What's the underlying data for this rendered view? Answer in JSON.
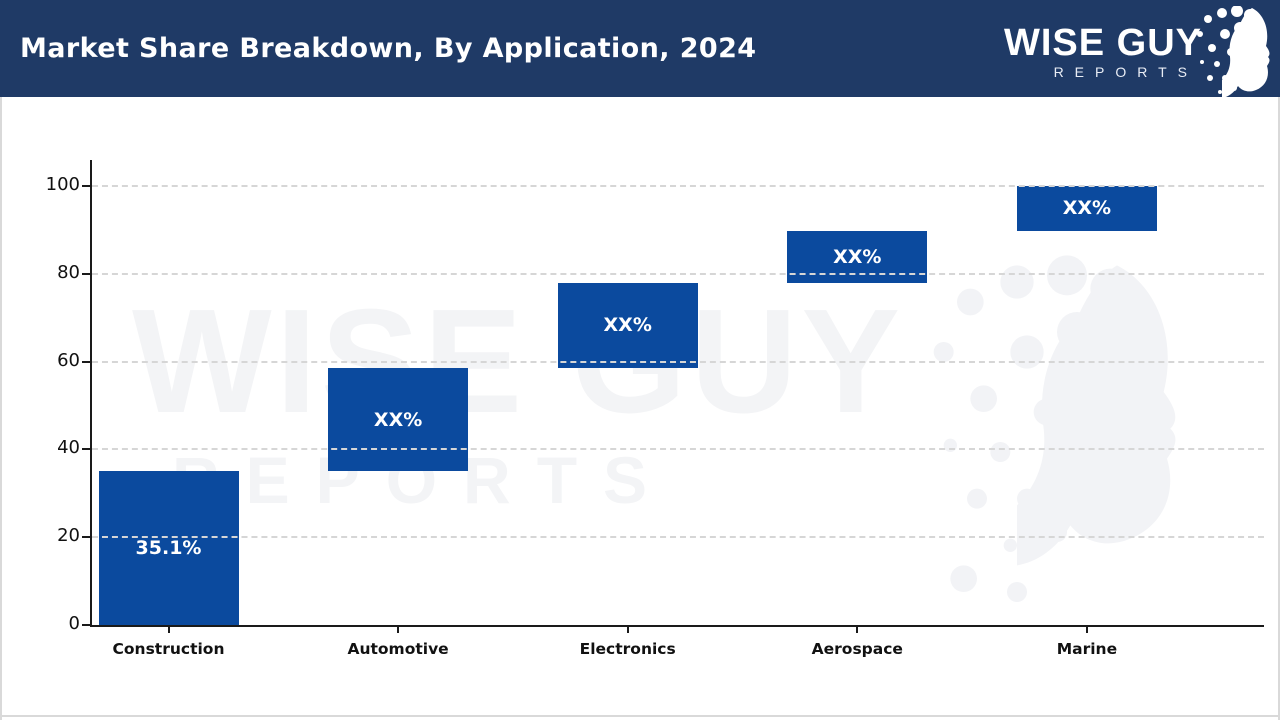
{
  "header": {
    "title": "Market Share Breakdown, By Application, 2024",
    "bg_color": "#1f3a66",
    "logo": {
      "line1": "WISE GUY",
      "line2": "REPORTS",
      "icon": "wiseguy-face-icon"
    }
  },
  "watermark": {
    "line1": "WISE GUY",
    "line2": "REPORTS"
  },
  "chart_data": {
    "type": "bar",
    "subtype": "waterfall",
    "title": "Market Share Breakdown, By Application, 2024",
    "categories": [
      "Construction",
      "Automotive",
      "Electronics",
      "Aerospace",
      "Marine"
    ],
    "segments": [
      {
        "category": "Construction",
        "start": 0,
        "end": 35.1,
        "value": 35.1,
        "label": "35.1%"
      },
      {
        "category": "Automotive",
        "start": 35.1,
        "end": 58.5,
        "value": 23.4,
        "label": "XX%"
      },
      {
        "category": "Electronics",
        "start": 58.5,
        "end": 78.0,
        "value": 19.5,
        "label": "XX%"
      },
      {
        "category": "Aerospace",
        "start": 78.0,
        "end": 89.8,
        "value": 11.8,
        "label": "XX%"
      },
      {
        "category": "Marine",
        "start": 89.8,
        "end": 100.0,
        "value": 10.2,
        "label": "XX%"
      }
    ],
    "ylim": [
      0,
      100
    ],
    "yticks": [
      0,
      20,
      40,
      60,
      80,
      100
    ],
    "grid": "horizontal-dashed-over-bars",
    "legend": "none",
    "bar_color": "#0b4a9e",
    "bar_label_color": "#ffffff",
    "xlabel": "",
    "ylabel": ""
  }
}
